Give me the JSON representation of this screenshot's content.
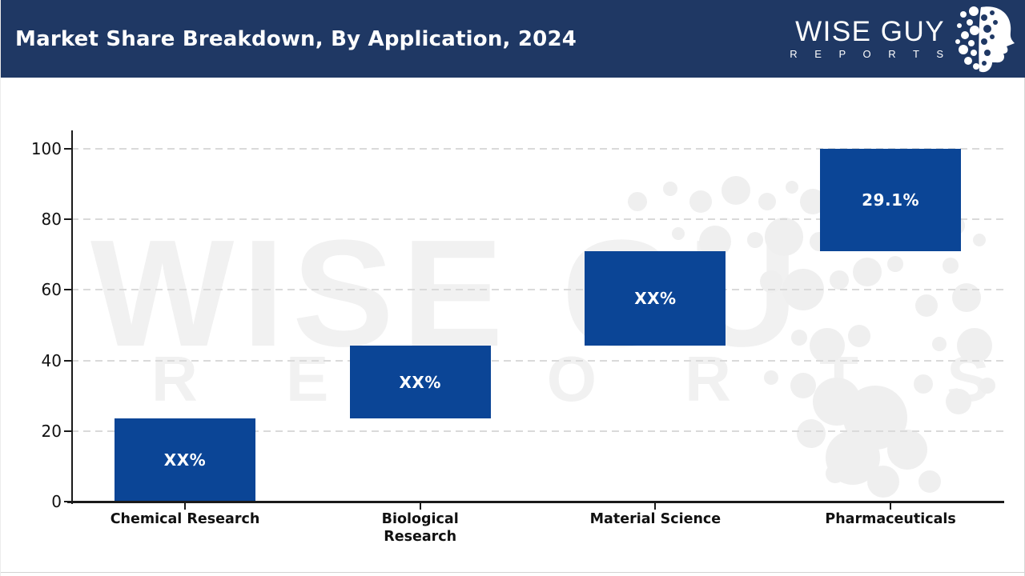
{
  "header": {
    "title": "Market Share Breakdown, By Application, 2024",
    "bg_color": "#1f3864",
    "logo": {
      "line1": "WISE GUY",
      "line2": "R E P O R T S"
    }
  },
  "watermark": {
    "line1": "WISE GU",
    "line2": "R E P O R T S"
  },
  "chart_data": {
    "type": "bar",
    "subtype": "floating-segment-waterfall",
    "title": "Market Share Breakdown, By Application, 2024",
    "categories": [
      "Chemical Research",
      "Biological\nResearch",
      "Material Science",
      "Pharmaceuticals"
    ],
    "segments": [
      {
        "start": 0,
        "end": 23.5
      },
      {
        "start": 23.5,
        "end": 44.2
      },
      {
        "start": 44.2,
        "end": 70.9
      },
      {
        "start": 70.9,
        "end": 100
      }
    ],
    "bar_labels": [
      "XX%",
      "XX%",
      "XX%",
      "29.1%"
    ],
    "yticks": [
      0,
      20,
      40,
      60,
      80,
      100
    ],
    "ylim": [
      0,
      100
    ],
    "xlabel": "",
    "ylabel": "",
    "bar_color": "#0b4596",
    "grid": "dashed-horizontal",
    "legend": "none"
  }
}
